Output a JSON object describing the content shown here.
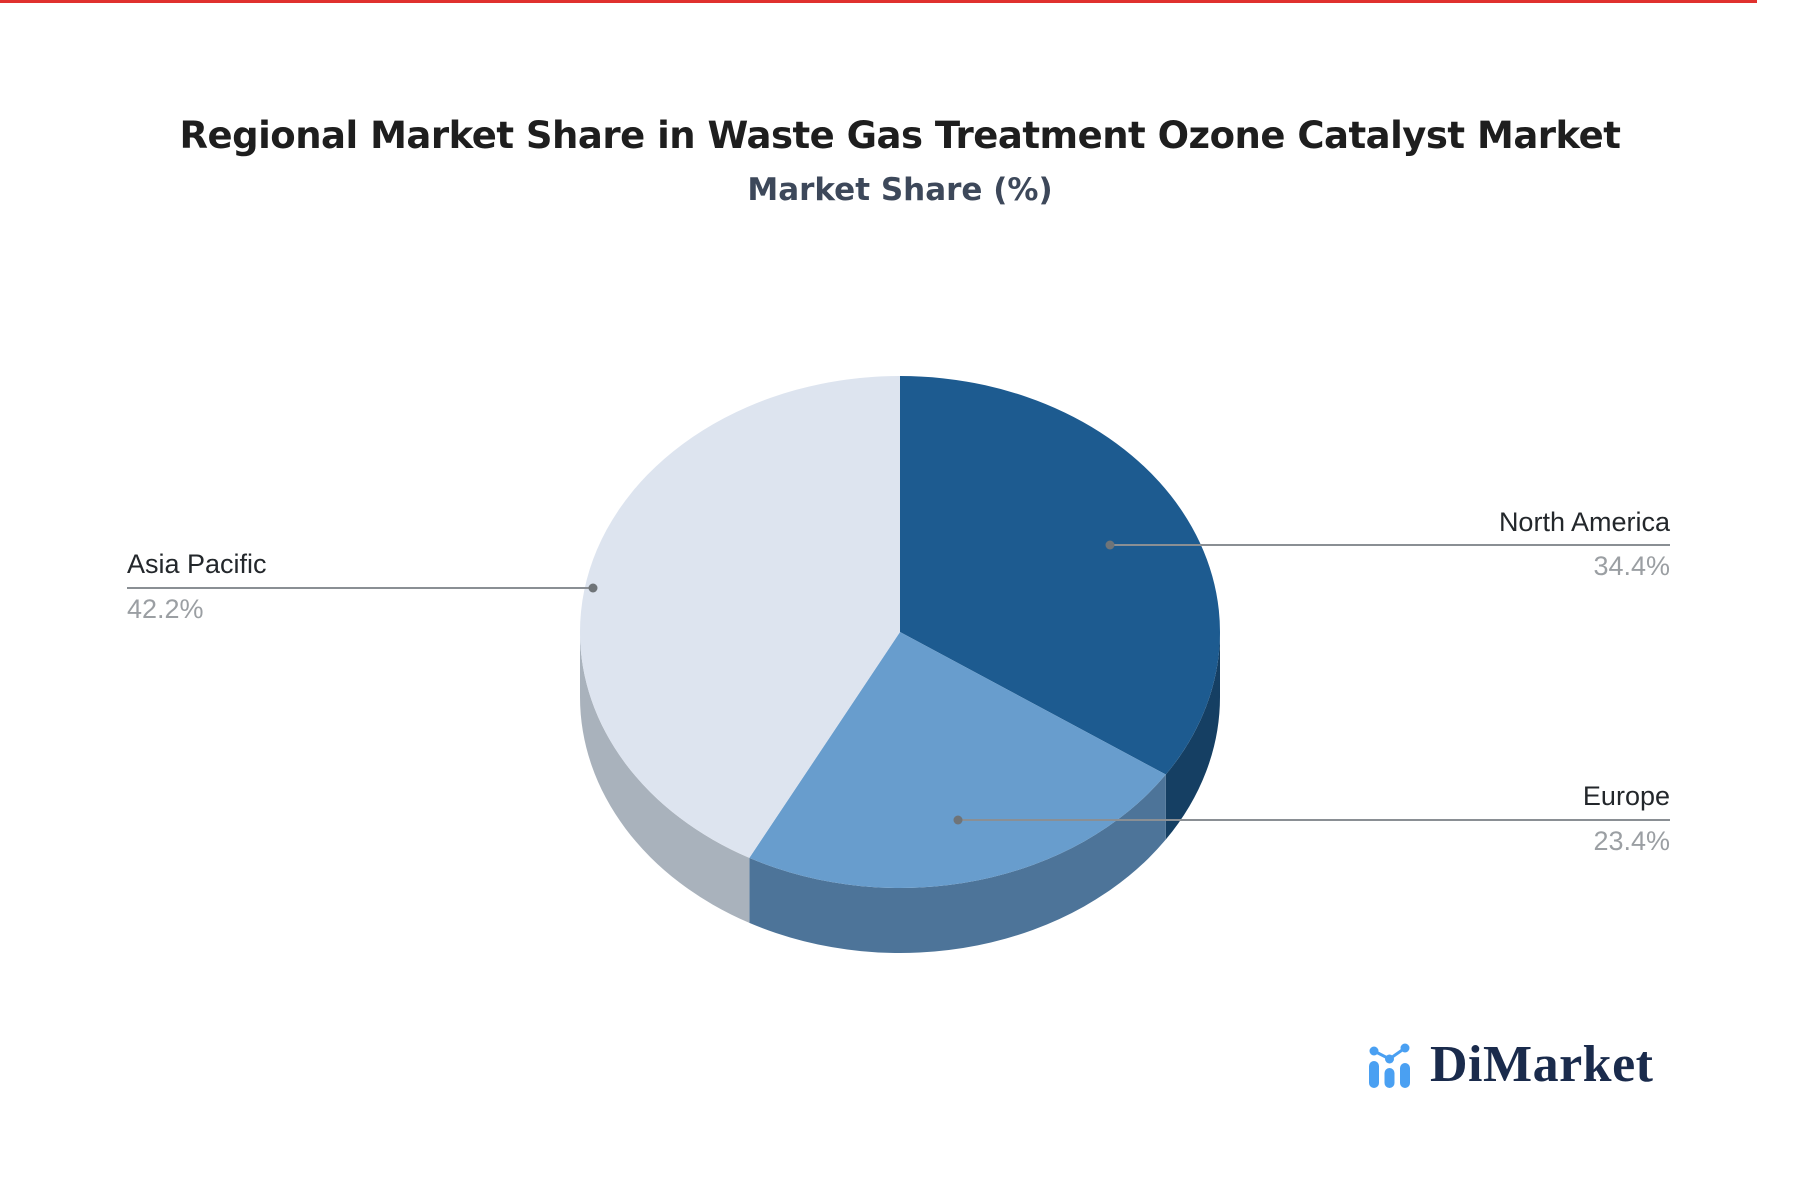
{
  "top_bar_color": "#e0312e",
  "chart_data": {
    "type": "pie",
    "style": "3d",
    "title": "Regional Market Share in Waste Gas Treatment Ozone Catalyst Market",
    "subtitle": "Market Share (%)",
    "unit": "%",
    "categories": [
      "North America",
      "Europe",
      "Asia Pacific"
    ],
    "values": [
      34.4,
      23.4,
      42.2
    ],
    "value_labels": [
      "34.4%",
      "23.4%",
      "42.2%"
    ],
    "colors": [
      "#1d5b90",
      "#689dcd",
      "#dde4ef"
    ],
    "side_colors": [
      "#153f63",
      "#4d7499",
      "#a9b2bc"
    ],
    "start_angle": -90,
    "direction": "clockwise",
    "legend": "none",
    "grid": false,
    "callout_line_color": "#8a8f94",
    "callout_dot_color": "#6f7478",
    "label_color": "#23272b",
    "value_color": "#9b9fa3",
    "title_color": "#1e1e1e",
    "subtitle_color": "#3d485a"
  },
  "brand": {
    "name": "DiMarket",
    "icon": "bar-line-chart-icon",
    "icon_color": "#4aa0f2",
    "text_color": "#1a2b4c"
  }
}
